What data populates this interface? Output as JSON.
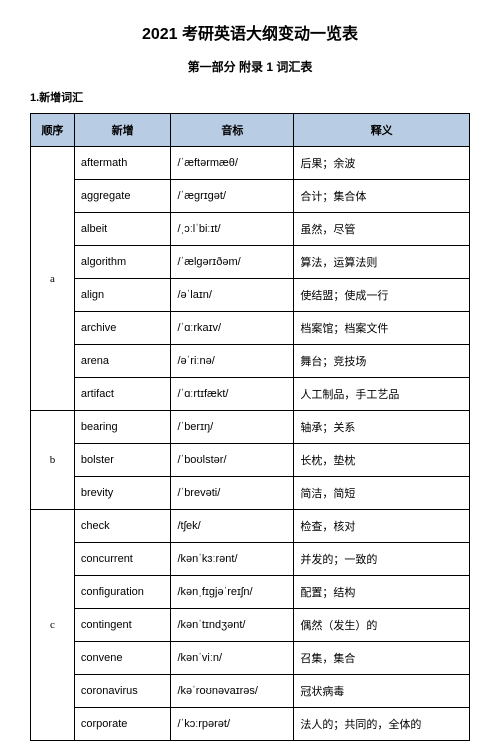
{
  "title": "2021 考研英语大纲变动一览表",
  "subtitle": "第一部分 附录 1 词汇表",
  "section_label": "1.新增词汇",
  "headers": {
    "order": "顺序",
    "added": "新增",
    "phonetic": "音标",
    "meaning": "释义"
  },
  "groups": [
    {
      "letter": "a",
      "rows": [
        {
          "word": "aftermath",
          "phon": "/ˈæftərmæθ/",
          "mean": "后果；余波"
        },
        {
          "word": "aggregate",
          "phon": "/ˈægrɪgət/",
          "mean": "合计；集合体"
        },
        {
          "word": "albeit",
          "phon": "/ˌɔːlˈbiːɪt/",
          "mean": "虽然，尽管"
        },
        {
          "word": "algorithm",
          "phon": "/ˈælgərɪðəm/",
          "mean": "算法，运算法则"
        },
        {
          "word": "align",
          "phon": "/əˈlaɪn/",
          "mean": "使结盟；使成一行"
        },
        {
          "word": "archive",
          "phon": "/ˈɑːrkaɪv/",
          "mean": "档案馆；档案文件"
        },
        {
          "word": "arena",
          "phon": "/əˈriːnə/",
          "mean": "舞台；竞技场"
        },
        {
          "word": "artifact",
          "phon": "/ˈɑːrtɪfækt/",
          "mean": "人工制品，手工艺品"
        }
      ]
    },
    {
      "letter": "b",
      "rows": [
        {
          "word": "bearing",
          "phon": "/ˈberɪŋ/",
          "mean": "轴承；关系"
        },
        {
          "word": "bolster",
          "phon": "/ˈboʊlstər/",
          "mean": "长枕，垫枕"
        },
        {
          "word": "brevity",
          "phon": "/ˈbrevəti/",
          "mean": "简洁，简短"
        }
      ]
    },
    {
      "letter": "c",
      "rows": [
        {
          "word": "check",
          "phon": "/tʃek/",
          "mean": "检查，核对"
        },
        {
          "word": "concurrent",
          "phon": "/kənˈkɜːrənt/",
          "mean": "并发的；一致的"
        },
        {
          "word": "configuration",
          "phon": "/kənˌfɪgjəˈreɪʃn/",
          "mean": "配置；结构"
        },
        {
          "word": "contingent",
          "phon": "/kənˈtɪndʒənt/",
          "mean": "偶然（发生）的"
        },
        {
          "word": "convene",
          "phon": "/kənˈviːn/",
          "mean": "召集，集合"
        },
        {
          "word": "coronavirus",
          "phon": "/kəˈroʊnəvaɪrəs/",
          "mean": "冠状病毒"
        },
        {
          "word": "corporate",
          "phon": "/ˈkɔːrpərət/",
          "mean": "法人的；共同的，全体的"
        }
      ]
    }
  ]
}
